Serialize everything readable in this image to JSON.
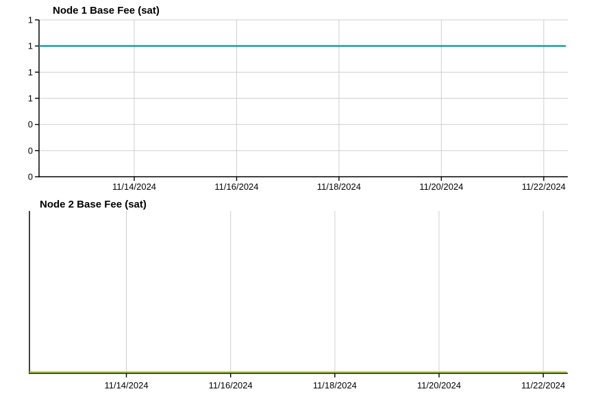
{
  "page": {
    "background": "#ffffff"
  },
  "colors": {
    "axis": "#000000",
    "grid": "#cfcfcf",
    "tick": "#000000",
    "title_text": "#000000",
    "tick_label_text": "#000000",
    "node1_line": "#1aa0a0",
    "node2_line": "#9fcc2e"
  },
  "chart_data": [
    {
      "id": "node-1-base-fee",
      "type": "line",
      "title": "Node 1 Base Fee (sat)",
      "x_axis": {
        "unit": "date (November 2024, day of month)",
        "domain": [
          12.14,
          22.47
        ],
        "ticks": [
          {
            "v": 14,
            "label": "11/14/2024"
          },
          {
            "v": 16,
            "label": "11/16/2024"
          },
          {
            "v": 18,
            "label": "11/18/2024"
          },
          {
            "v": 20,
            "label": "11/20/2024"
          },
          {
            "v": 22,
            "label": "11/22/2024"
          }
        ]
      },
      "y_axis": {
        "domain": [
          0,
          1.2
        ],
        "ticks": [
          {
            "v": 0.0,
            "label": "0"
          },
          {
            "v": 0.2,
            "label": "0"
          },
          {
            "v": 0.4,
            "label": "0"
          },
          {
            "v": 0.6,
            "label": "1"
          },
          {
            "v": 0.8,
            "label": "1"
          },
          {
            "v": 1.0,
            "label": "1"
          },
          {
            "v": 1.2,
            "label": "1"
          }
        ]
      },
      "grid": {
        "horizontal": true,
        "vertical": true
      },
      "legend": "none",
      "series": [
        {
          "name": "Node 1 base fee",
          "color": "#1aa0a0",
          "stroke_width": 2.6,
          "points": [
            [
              12.14,
              1
            ],
            [
              22.43,
              1
            ]
          ]
        }
      ]
    },
    {
      "id": "node-2-base-fee",
      "type": "line",
      "title": "Node 2 Base Fee (sat)",
      "x_axis": {
        "unit": "date (November 2024, day of month)",
        "domain": [
          12.14,
          22.47
        ],
        "ticks": [
          {
            "v": 14,
            "label": "11/14/2024"
          },
          {
            "v": 16,
            "label": "11/16/2024"
          },
          {
            "v": 18,
            "label": "11/18/2024"
          },
          {
            "v": 20,
            "label": "11/20/2024"
          },
          {
            "v": 22,
            "label": "11/22/2024"
          }
        ]
      },
      "y_axis": {
        "domain": [
          0,
          1
        ],
        "ticks": []
      },
      "grid": {
        "horizontal": false,
        "vertical": true
      },
      "legend": "none",
      "series": [
        {
          "name": "Node 2 base fee",
          "color": "#9fcc2e",
          "stroke_width": 2.2,
          "points": [
            [
              12.14,
              0
            ],
            [
              22.45,
              0
            ]
          ]
        }
      ]
    }
  ]
}
